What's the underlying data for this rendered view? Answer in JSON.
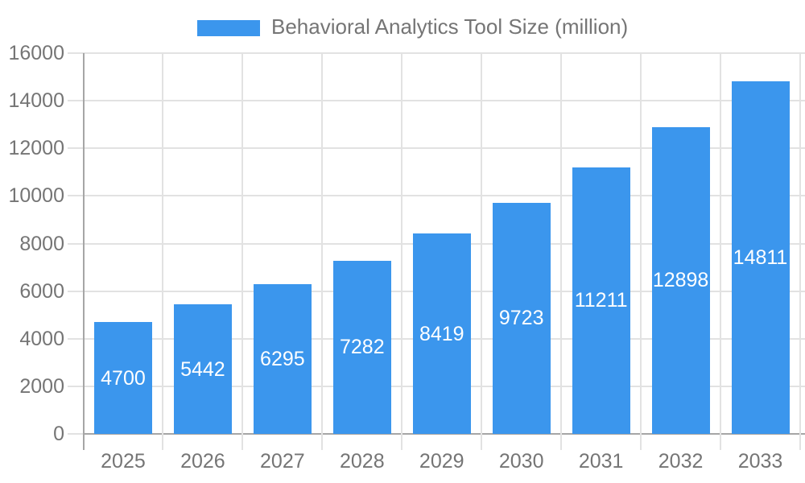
{
  "legend": {
    "label": "Behavioral Analytics Tool Size (million)",
    "swatch_icon": "legend-color-swatch"
  },
  "chart_data": {
    "type": "bar",
    "title": "Behavioral Analytics Tool Size (million)",
    "categories": [
      "2025",
      "2026",
      "2027",
      "2028",
      "2029",
      "2030",
      "2031",
      "2032",
      "2033"
    ],
    "values": [
      4700,
      5442,
      6295,
      7282,
      8419,
      9723,
      11211,
      12898,
      14811
    ],
    "xlabel": "",
    "ylabel": "",
    "ylim": [
      0,
      16000
    ],
    "ytick_step": 2000,
    "ytick_labels": [
      "0",
      "2000",
      "4000",
      "6000",
      "8000",
      "10000",
      "12000",
      "14000",
      "16000"
    ],
    "grid": true,
    "legend_position": "top-center",
    "value_labels": "inside-center-white",
    "colors": {
      "bar": "#3B96ED",
      "axis_line": "#A6A6A6",
      "grid_line": "#E2E2E2",
      "text": "#757575",
      "value_text": "#FFFFFF",
      "background": "#FFFFFF"
    }
  }
}
